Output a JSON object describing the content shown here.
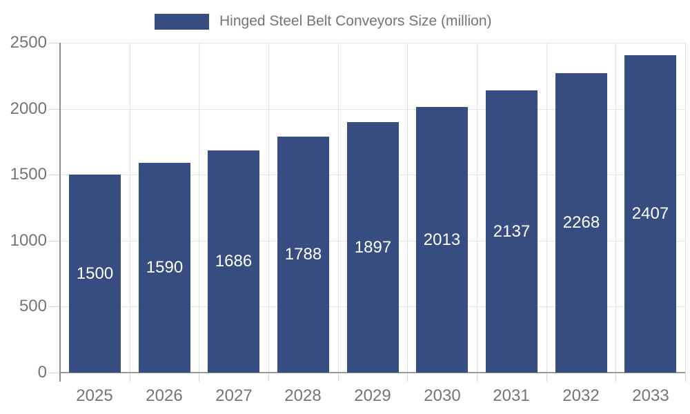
{
  "legend": {
    "label": "Hinged Steel Belt Conveyors Size (million)",
    "swatch_color": "#374C81"
  },
  "colors": {
    "bar": "#374C81",
    "bar_label": "#ffffff",
    "grid": "#e2e2e2",
    "tick": "#d4d4d4",
    "y_axis": "#8a8a8a",
    "x_axis": "#9a9a9a",
    "axis_label": "#757575",
    "legend_text": "#757575",
    "background": "#ffffff"
  },
  "chart_data": {
    "type": "bar",
    "title": "",
    "legend_entries": [
      "Hinged Steel Belt Conveyors Size (million)"
    ],
    "legend_position": "top",
    "categories": [
      "2025",
      "2026",
      "2027",
      "2028",
      "2029",
      "2030",
      "2031",
      "2032",
      "2033"
    ],
    "values": [
      1500,
      1590,
      1686,
      1788,
      1897,
      2013,
      2137,
      2268,
      2407
    ],
    "bar_labels_visible": true,
    "bar_label_position": "center",
    "xlabel": "",
    "ylabel": "",
    "ylim": [
      0,
      2500
    ],
    "yticks": [
      0,
      500,
      1000,
      1500,
      2000,
      2500
    ],
    "grid": true
  }
}
